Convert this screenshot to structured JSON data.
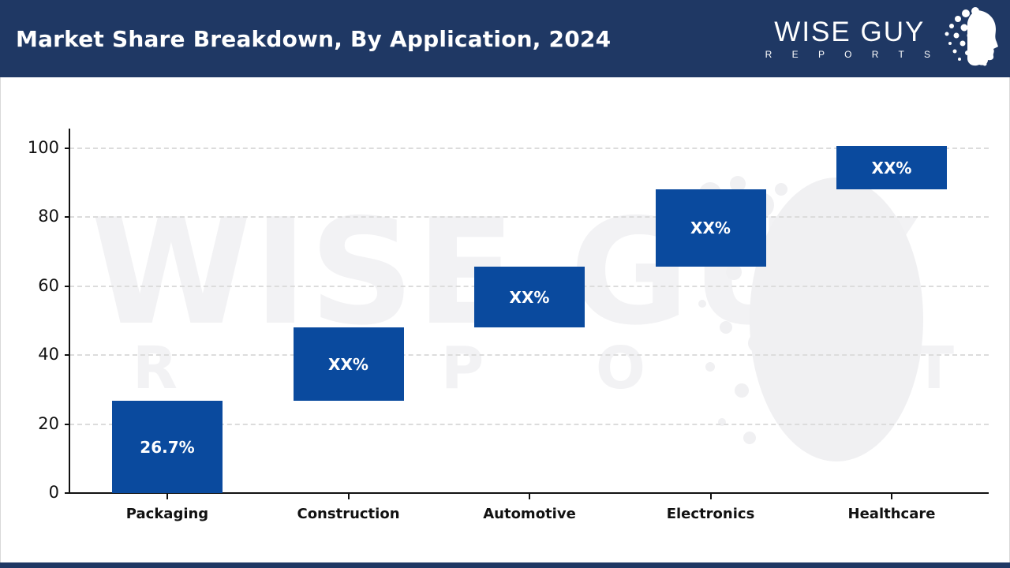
{
  "header": {
    "title": "Market Share Breakdown, By Application, 2024",
    "logo": {
      "name": "WISE GUY",
      "sub": "R E P O R T S"
    }
  },
  "watermark": {
    "line1": "WISE GUY",
    "line2": "R E P O R T S"
  },
  "chart_data": {
    "type": "bar",
    "variant": "waterfall",
    "title": "Market Share Breakdown, By Application, 2024",
    "categories": [
      "Packaging",
      "Construction",
      "Automotive",
      "Electronics",
      "Healthcare"
    ],
    "segments": [
      {
        "category": "Packaging",
        "start": 0,
        "end": 26.7,
        "label": "26.7%"
      },
      {
        "category": "Construction",
        "start": 26.7,
        "end": 48,
        "label": "XX%"
      },
      {
        "category": "Automotive",
        "start": 48,
        "end": 65.5,
        "label": "XX%"
      },
      {
        "category": "Electronics",
        "start": 65.5,
        "end": 88,
        "label": "XX%"
      },
      {
        "category": "Healthcare",
        "start": 88,
        "end": 100.5,
        "label": "XX%"
      }
    ],
    "yticks": [
      0,
      20,
      40,
      60,
      80,
      100
    ],
    "ylim": [
      0,
      105.7
    ],
    "xlabel": "",
    "ylabel": "",
    "legend": "none",
    "grid": "horizontal-dashed",
    "bar_color": "#0a4a9e",
    "label_color": "#ffffff"
  },
  "colors": {
    "header_bg": "#1f3864",
    "grid": "#dcdcdc",
    "axis": "#111111",
    "watermark": "#f2f2f4"
  }
}
